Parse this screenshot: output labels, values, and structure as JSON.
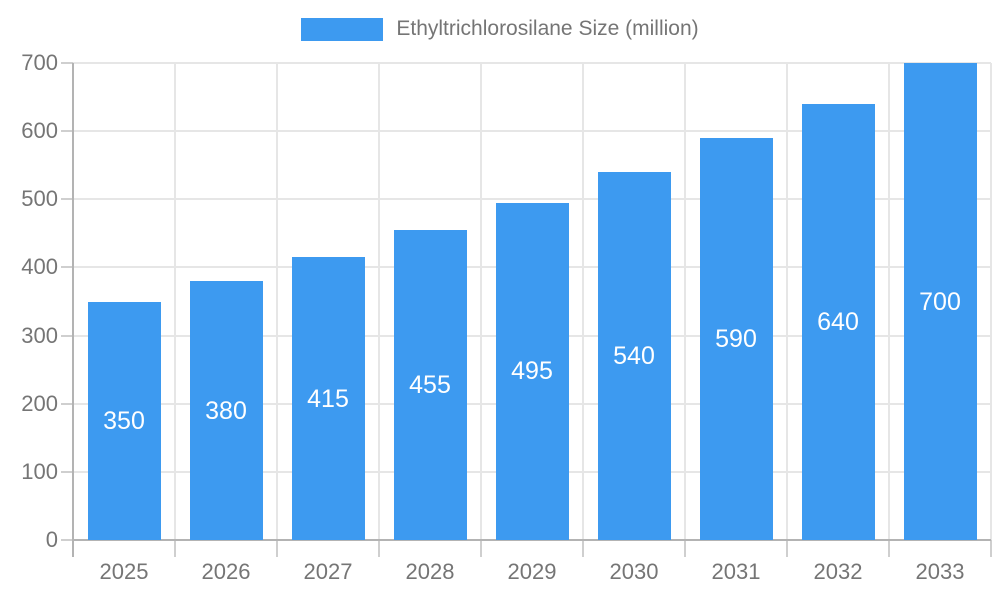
{
  "chart_data": {
    "type": "bar",
    "title": "",
    "legend_label": "Ethyltrichlorosilane Size (million)",
    "legend_position": "top-center",
    "categories": [
      "2025",
      "2026",
      "2027",
      "2028",
      "2029",
      "2030",
      "2031",
      "2032",
      "2033"
    ],
    "values": [
      350,
      380,
      415,
      455,
      495,
      540,
      590,
      640,
      700
    ],
    "xlabel": "",
    "ylabel": "",
    "ylim": [
      0,
      700
    ],
    "yticks": [
      0,
      100,
      200,
      300,
      400,
      500,
      600,
      700
    ],
    "grid": true,
    "value_labels": "inside-center",
    "colors": {
      "bar": "#3D9AF0",
      "axis_line": "#B3B3B3",
      "gridline": "#E6E6E6",
      "tick_mark": "#CFCFCF",
      "tick_text": "#757575",
      "value_text": "#FFFFFF",
      "background": "#FFFFFF"
    }
  }
}
